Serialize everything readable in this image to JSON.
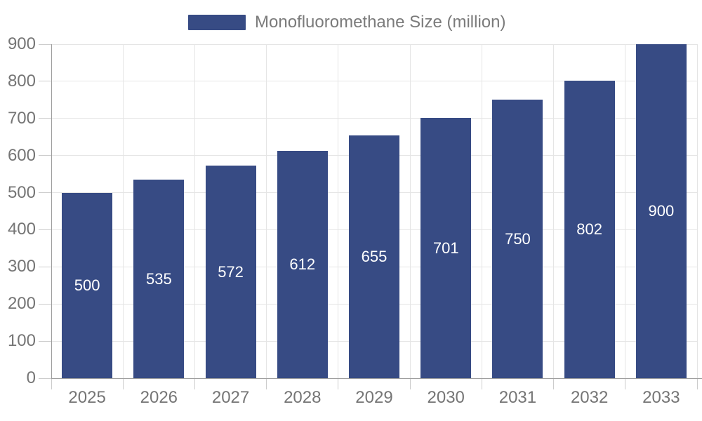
{
  "legend": {
    "label": "Monofluoromethane Size (million)"
  },
  "colors": {
    "bar": "#374B84",
    "axis_line": "#9e9e9e",
    "grid_line": "#e5e5e5",
    "tick_line": "#cccccc",
    "axis_label_text": "#757575",
    "legend_text": "#7b7b7b",
    "value_label_text": "#ffffff",
    "background": "#ffffff"
  },
  "chart_data": {
    "type": "bar",
    "title": "",
    "xlabel": "",
    "ylabel": "",
    "categories": [
      "2025",
      "2026",
      "2027",
      "2028",
      "2029",
      "2030",
      "2031",
      "2032",
      "2033"
    ],
    "series": [
      {
        "name": "Monofluoromethane Size (million)",
        "values": [
          500,
          535,
          572,
          612,
          655,
          701,
          750,
          802,
          900
        ]
      }
    ],
    "value_labels_shown": true,
    "ylim": [
      0,
      900
    ],
    "ytick_step": 100,
    "yticks": [
      0,
      100,
      200,
      300,
      400,
      500,
      600,
      700,
      800,
      900
    ],
    "grid": true,
    "legend_position": "top-center"
  }
}
